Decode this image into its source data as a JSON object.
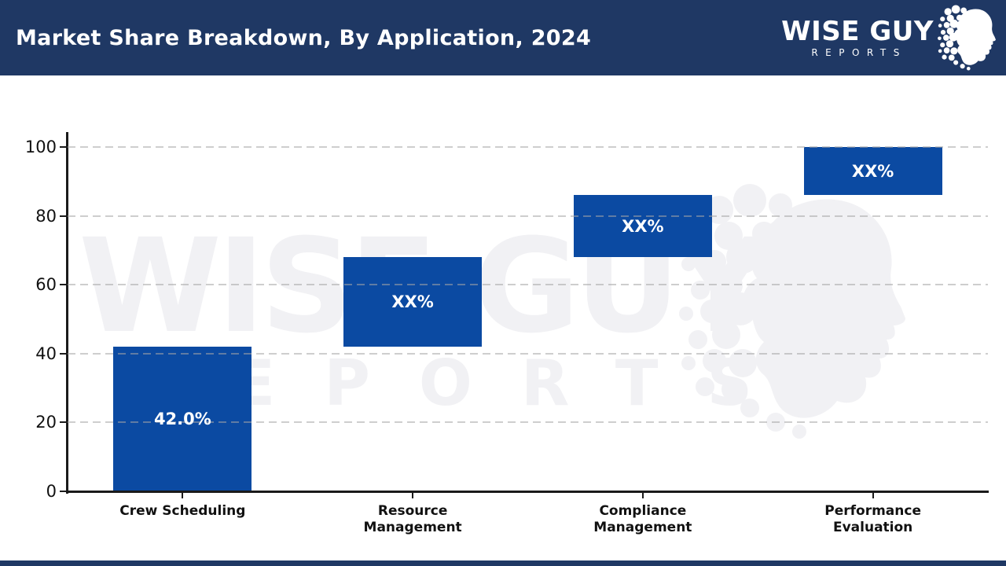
{
  "header": {
    "title": "Market Share Breakdown, By Application, 2024",
    "logo": {
      "line1": "WISE GUY",
      "line2": "REPORTS"
    },
    "bg_color": "#1f3864"
  },
  "watermark": {
    "line1": "WISE GUY",
    "line2": "REPORTS"
  },
  "footer": {
    "bg_color": "#1f3864"
  },
  "chart_data": {
    "type": "bar",
    "subtype": "waterfall",
    "title": "Market Share Breakdown, By Application, 2024",
    "categories": [
      "Crew Scheduling",
      "Resource Management",
      "Compliance Management",
      "Performance Evaluation"
    ],
    "segments": [
      {
        "label": "Crew Scheduling",
        "start": 0,
        "end": 42,
        "value_label": "42.0%"
      },
      {
        "label": "Resource Management",
        "start": 42,
        "end": 68,
        "value_label": "XX%"
      },
      {
        "label": "Compliance Management",
        "start": 68,
        "end": 86,
        "value_label": "XX%"
      },
      {
        "label": "Performance Evaluation",
        "start": 86,
        "end": 100,
        "value_label": "XX%"
      }
    ],
    "xlabel": "",
    "ylabel": "",
    "ylim": [
      0,
      100
    ],
    "yticks": [
      0,
      20,
      40,
      60,
      80,
      100
    ],
    "grid": "horizontal dashed, drawn above bars",
    "legend": "none",
    "bar_color": "#0b4aa2",
    "bar_label_color": "#ffffff",
    "axis_color": "#1a1a1a",
    "gridline_color": "#cccccc",
    "tick_label_color": "#111111"
  }
}
